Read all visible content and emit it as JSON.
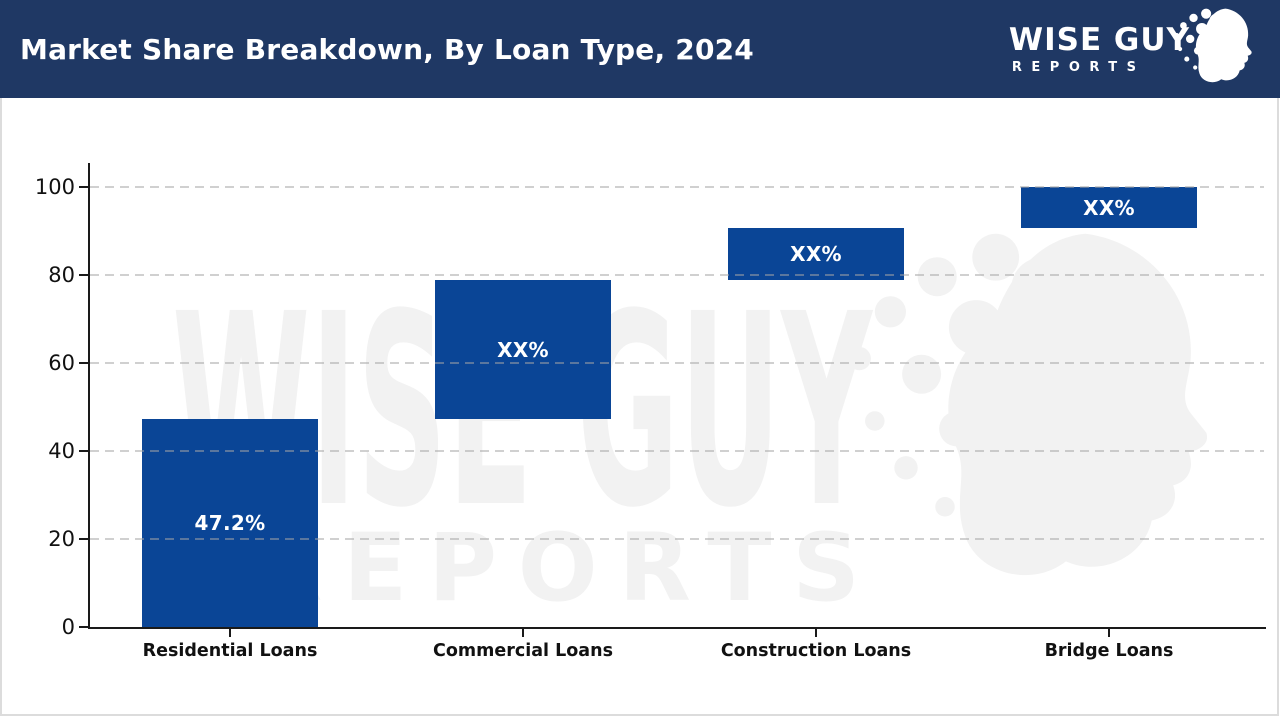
{
  "header": {
    "title": "Market Share Breakdown, By Loan Type, 2024",
    "logo": {
      "line1": "WISE GUY",
      "line2": "REPORTS"
    }
  },
  "watermark": {
    "line1": "WISE GUY",
    "line2": "REPORTS"
  },
  "colors": {
    "header_bg": "#1f3864",
    "bar": "#0a4596",
    "axis": "#1a1a1a",
    "gridline": "#d9d9d9",
    "label_on_bar": "#ffffff",
    "watermark": "#f2f2f2"
  },
  "chart_data": {
    "type": "bar",
    "subtype": "waterfall",
    "title": "Market Share Breakdown, By Loan Type, 2024",
    "categories": [
      "Residential Loans",
      "Commercial Loans",
      "Construction Loans",
      "Bridge Loans"
    ],
    "series": [
      {
        "name": "Market share (%)",
        "segments": [
          {
            "category": "Residential Loans",
            "start": 0,
            "end": 47.2,
            "label": "47.2%"
          },
          {
            "category": "Commercial Loans",
            "start": 47.2,
            "end": 78.9,
            "label": "XX%"
          },
          {
            "category": "Construction Loans",
            "start": 78.9,
            "end": 90.6,
            "label": "XX%"
          },
          {
            "category": "Bridge Loans",
            "start": 90.6,
            "end": 100,
            "label": "XX%"
          }
        ]
      }
    ],
    "ylim": [
      0,
      105.5
    ],
    "yticks": [
      0,
      20,
      40,
      60,
      80,
      100
    ],
    "grid": "dashed-horizontal",
    "legend": "none"
  }
}
